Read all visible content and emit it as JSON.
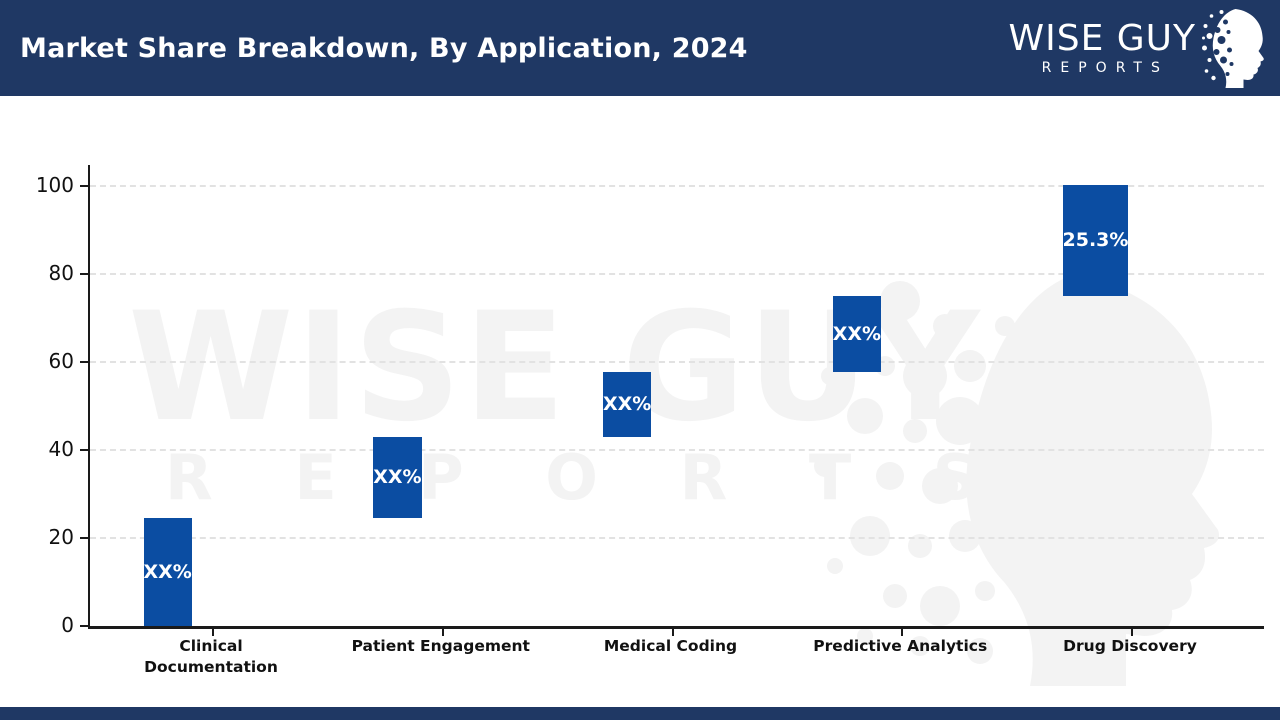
{
  "header": {
    "title": "Market Share Breakdown, By Application, 2024",
    "logo": {
      "line1": "WISE GUY",
      "line2": "REPORTS"
    }
  },
  "watermark": {
    "line1": "WISE GUY",
    "line2": "R E P O R T S"
  },
  "chart_data": {
    "type": "bar",
    "subtype": "waterfall",
    "title": "Market Share Breakdown, By Application, 2024",
    "categories": [
      "Clinical Documentation",
      "Patient Engagement",
      "Medical Coding",
      "Predictive Analytics",
      "Drug Discovery"
    ],
    "segments": [
      {
        "category": "Clinical Documentation",
        "start": 0,
        "end": 24.5,
        "label": "XX%"
      },
      {
        "category": "Patient Engagement",
        "start": 24.5,
        "end": 43.0,
        "label": "XX%"
      },
      {
        "category": "Medical Coding",
        "start": 43.0,
        "end": 57.8,
        "label": "XX%"
      },
      {
        "category": "Predictive Analytics",
        "start": 57.8,
        "end": 75.0,
        "label": "XX%"
      },
      {
        "category": "Drug Discovery",
        "start": 75.0,
        "end": 100.3,
        "label": "25.3%"
      }
    ],
    "yticks": [
      0,
      20,
      40,
      60,
      80,
      100
    ],
    "ylim": [
      0,
      104.8
    ],
    "xlabel": "",
    "ylabel": "",
    "grid": "horizontal-dashed",
    "legend": "none",
    "bar_color": "#0b4da2",
    "bar_label_color": "#ffffff"
  },
  "colors": {
    "header_bg": "#1f3864",
    "footer_bg": "#1f3864",
    "bar": "#0b4da2",
    "watermark": "#f3f3f3",
    "grid": "#e2e2e2",
    "axis": "#1a1a1a",
    "title_text": "#ffffff"
  }
}
